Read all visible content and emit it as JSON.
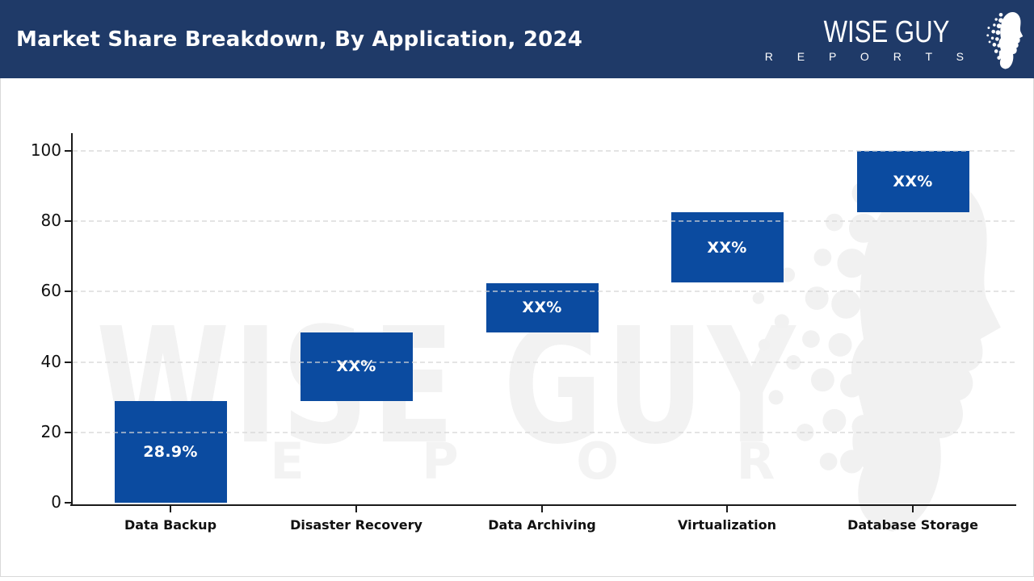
{
  "header": {
    "title": "Market Share Breakdown, By Application, 2024",
    "logo": {
      "wordmark": "WISE GUY",
      "reports": "R E P O R T S"
    }
  },
  "watermark": {
    "wordmark": "WISE GUY",
    "reports": "R E P O R T S"
  },
  "colors": {
    "header_bg": "#1f3a68",
    "bar": "#0b4ba0",
    "bar_label": "#ffffff",
    "axis": "#1a1a1a",
    "grid": "#d9d9d9",
    "watermark": "#f2f2f2"
  },
  "chart_data": {
    "type": "bar",
    "subtype": "floating-waterfall",
    "title": "Market Share Breakdown, By Application, 2024",
    "categories": [
      "Data Backup",
      "Disaster Recovery",
      "Data Archiving",
      "Virtualization",
      "Database Storage"
    ],
    "bars": [
      {
        "category": "Data Backup",
        "start": 0,
        "end": 28.9,
        "label": "28.9%"
      },
      {
        "category": "Disaster Recovery",
        "start": 28.9,
        "end": 48.5,
        "label": "XX%"
      },
      {
        "category": "Data Archiving",
        "start": 48.5,
        "end": 62.5,
        "label": "XX%"
      },
      {
        "category": "Virtualization",
        "start": 62.5,
        "end": 82.5,
        "label": "XX%"
      },
      {
        "category": "Database Storage",
        "start": 82.5,
        "end": 100,
        "label": "XX%"
      }
    ],
    "ylim": [
      0,
      100
    ],
    "yticks": [
      0,
      20,
      40,
      60,
      80,
      100
    ],
    "xlabel": "",
    "ylabel": "",
    "grid": "horizontal dashed",
    "legend": "none"
  }
}
